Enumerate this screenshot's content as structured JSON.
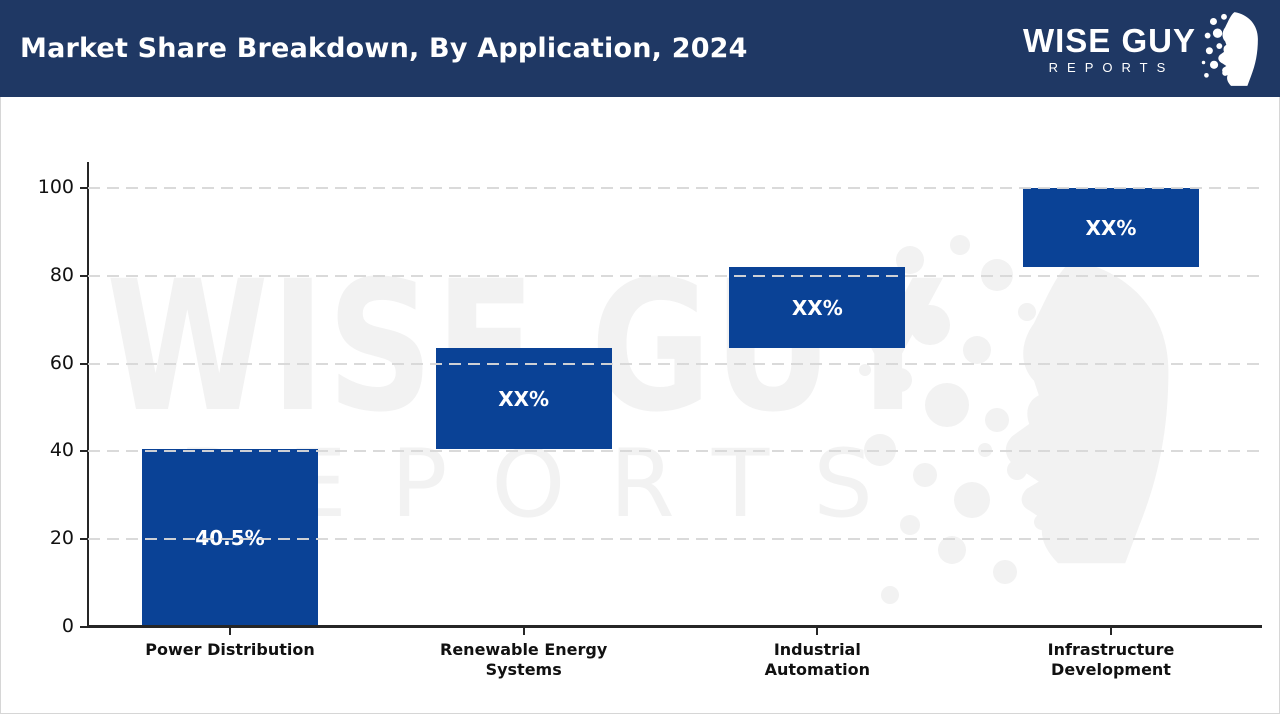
{
  "header": {
    "title": "Market Share Breakdown, By Application, 2024",
    "bg_color": "#1F3864",
    "logo": {
      "line1": "WISE GUY",
      "line2": "REPORTS"
    }
  },
  "watermark": {
    "line1": "WISE GUY",
    "line2": "REPORTS"
  },
  "chart_data": {
    "type": "bar",
    "subtype": "waterfall",
    "title": "Market Share Breakdown, By Application, 2024",
    "categories": [
      "Power Distribution",
      "Renewable Energy Systems",
      "Industrial Automation",
      "Infrastructure Development"
    ],
    "category_label_lines": [
      [
        "Power Distribution"
      ],
      [
        "Renewable Energy",
        "Systems"
      ],
      [
        "Industrial",
        "Automation"
      ],
      [
        "Infrastructure",
        "Development"
      ]
    ],
    "bars": [
      {
        "category": "Power Distribution",
        "start": 0,
        "end": 40.5,
        "value": 40.5,
        "label": "40.5%"
      },
      {
        "category": "Renewable Energy Systems",
        "start": 40.5,
        "end": 63.5,
        "value": 23,
        "label": "XX%"
      },
      {
        "category": "Industrial Automation",
        "start": 63.5,
        "end": 82,
        "value": 18.5,
        "label": "XX%"
      },
      {
        "category": "Infrastructure Development",
        "start": 82,
        "end": 100,
        "value": 18,
        "label": "XX%"
      }
    ],
    "xlabel": "",
    "ylabel": "",
    "ylim": [
      0,
      100
    ],
    "yticks": [
      0,
      20,
      40,
      60,
      80,
      100
    ],
    "grid": "horizontal-dashed",
    "grid_color": "#d8d8d8",
    "legend": "none",
    "bar_color": "#0A4296",
    "bar_label_color": "#FFFFFF",
    "axis_color": "#262626"
  }
}
